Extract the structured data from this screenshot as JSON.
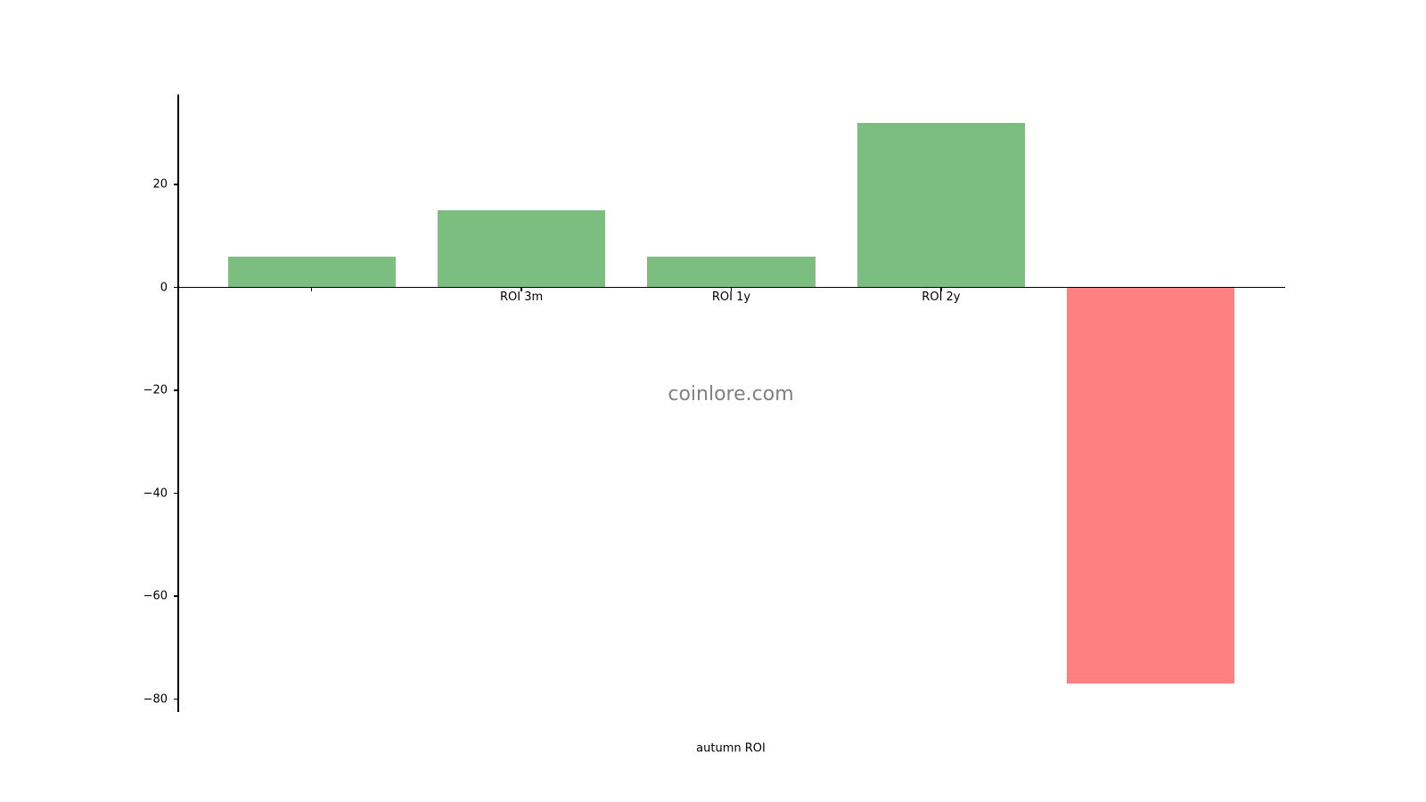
{
  "chart_data": {
    "type": "bar",
    "title": "",
    "categories": [
      "",
      "ROI 3m",
      "ROI 1y",
      "ROI 2y",
      ""
    ],
    "values": [
      6,
      15,
      6,
      32,
      -77
    ],
    "series": [
      {
        "name": "autumn ROI",
        "values": [
          6,
          15,
          6,
          32,
          -77
        ]
      }
    ],
    "bar_colors": [
      "#7cbe80",
      "#7cbe80",
      "#7cbe80",
      "#7cbe80",
      "#ff8080"
    ],
    "positive_color": "#7cbe80",
    "negative_color": "#ff8080",
    "xlabel": "autumn ROI",
    "ylabel": "",
    "yticks": [
      20,
      0,
      -20,
      -40,
      -60,
      -80
    ],
    "ylim": [
      -82.5,
      37.5
    ],
    "bar_width_fraction": 0.8,
    "grid": false,
    "legend_position": "none",
    "axis_color": "#000000",
    "tick_label_color": "#000000",
    "watermark": "coinlore.com",
    "watermark_color": "#808080"
  }
}
